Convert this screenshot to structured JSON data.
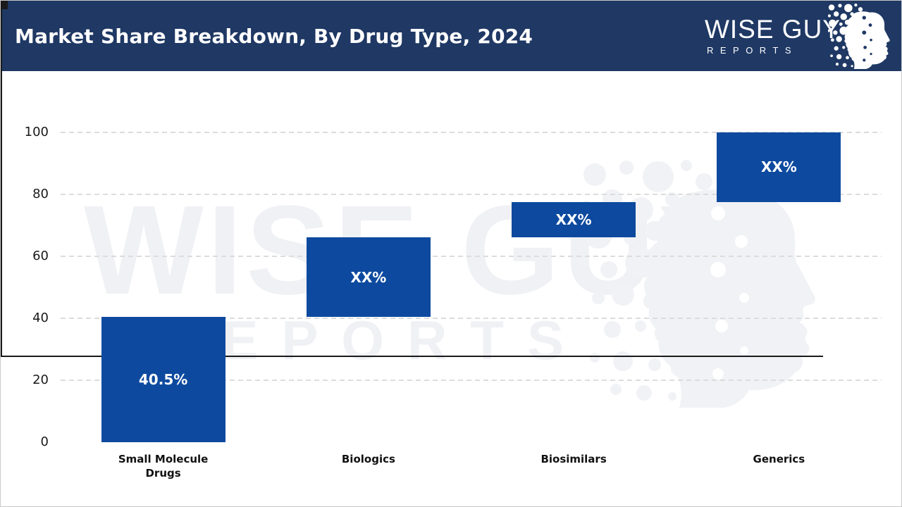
{
  "header": {
    "title": "Market Share Breakdown, By Drug Type, 2024",
    "bg_color": "#1f3864",
    "logo": {
      "brand_line1": "WISE GUY",
      "brand_line2": "REPORTS"
    }
  },
  "watermark": {
    "line1": "WISE GUY",
    "line2": "REPORTS"
  },
  "chart_data": {
    "type": "bar",
    "subtype": "waterfall",
    "title": "Market Share Breakdown, By Drug Type, 2024",
    "categories": [
      "Small Molecule Drugs",
      "Biologics",
      "Biosimilars",
      "Generics"
    ],
    "segments": [
      {
        "category": "Small Molecule Drugs",
        "start": 0,
        "end": 40.5,
        "label": "40.5%"
      },
      {
        "category": "Biologics",
        "start": 40.5,
        "end": 66,
        "label": "XX%"
      },
      {
        "category": "Biosimilars",
        "start": 66,
        "end": 77.5,
        "label": "XX%"
      },
      {
        "category": "Generics",
        "start": 77.5,
        "end": 100,
        "label": "XX%"
      }
    ],
    "xlabel": "",
    "ylabel": "",
    "yticks": [
      0,
      20,
      40,
      60,
      80,
      100
    ],
    "ylim": [
      0,
      104
    ],
    "grid": {
      "horizontal": true,
      "style": "dashed",
      "color": "#dcdcdc"
    },
    "legend": "none",
    "bar_color": "#0d4a9f",
    "bar_label_color": "#ffffff",
    "axis_color": "#1a1a1a"
  }
}
